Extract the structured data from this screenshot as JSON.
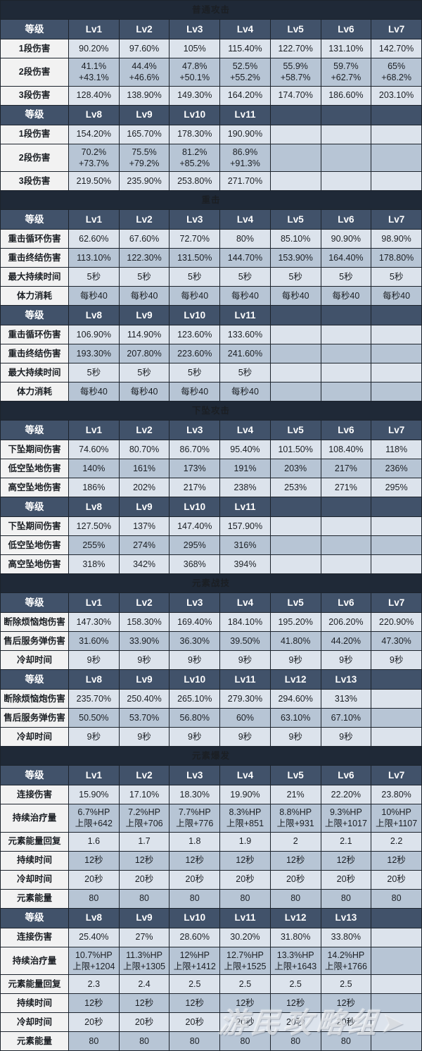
{
  "labels": {
    "level_header": "等级"
  },
  "watermark": {
    "text": "游民攻略组",
    "arrow": "➤"
  },
  "colors": {
    "section_title_bg": "#1f2937",
    "level_header_bg": "#41526a",
    "label_cell_bg": "#f2f2f2",
    "row_light_bg": "#dce3ec",
    "row_dark_bg": "#b7c5d5",
    "border": "#1c232c",
    "header_text": "#ffffff",
    "body_text": "#1b1f24"
  },
  "chart_data": {
    "type": "table",
    "title": "角色天赋数值表（普通攻击 / 重击 / 下坠攻击 / 元素战技 / 元素爆发）"
  },
  "sections": [
    {
      "title": "普通攻击",
      "blocks": [
        {
          "levels": [
            "Lv1",
            "Lv2",
            "Lv3",
            "Lv4",
            "Lv5",
            "Lv6",
            "Lv7"
          ],
          "rows": [
            {
              "label": "1段伤害",
              "values": [
                "90.20%",
                "97.60%",
                "105%",
                "115.40%",
                "122.70%",
                "131.10%",
                "142.70%"
              ]
            },
            {
              "label": "2段伤害",
              "values": [
                "41.1%\n+43.1%",
                "44.4%\n+46.6%",
                "47.8%\n+50.1%",
                "52.5%\n+55.2%",
                "55.9%\n+58.7%",
                "59.7%\n+62.7%",
                "65%\n+68.2%"
              ]
            },
            {
              "label": "3段伤害",
              "values": [
                "128.40%",
                "138.90%",
                "149.30%",
                "164.20%",
                "174.70%",
                "186.60%",
                "203.10%"
              ]
            }
          ]
        },
        {
          "levels": [
            "Lv8",
            "Lv9",
            "Lv10",
            "Lv11",
            "",
            "",
            ""
          ],
          "rows": [
            {
              "label": "1段伤害",
              "values": [
                "154.20%",
                "165.70%",
                "178.30%",
                "190.90%",
                "",
                "",
                ""
              ]
            },
            {
              "label": "2段伤害",
              "values": [
                "70.2%\n+73.7%",
                "75.5%\n+79.2%",
                "81.2%\n+85.2%",
                "86.9%\n+91.3%",
                "",
                "",
                ""
              ]
            },
            {
              "label": "3段伤害",
              "values": [
                "219.50%",
                "235.90%",
                "253.80%",
                "271.70%",
                "",
                "",
                ""
              ]
            }
          ]
        }
      ]
    },
    {
      "title": "重击",
      "blocks": [
        {
          "levels": [
            "Lv1",
            "Lv2",
            "Lv3",
            "Lv4",
            "Lv5",
            "Lv6",
            "Lv7"
          ],
          "rows": [
            {
              "label": "重击循环伤害",
              "values": [
                "62.60%",
                "67.60%",
                "72.70%",
                "80%",
                "85.10%",
                "90.90%",
                "98.90%"
              ]
            },
            {
              "label": "重击终结伤害",
              "values": [
                "113.10%",
                "122.30%",
                "131.50%",
                "144.70%",
                "153.90%",
                "164.40%",
                "178.80%"
              ]
            },
            {
              "label": "最大持续时间",
              "values": [
                "5秒",
                "5秒",
                "5秒",
                "5秒",
                "5秒",
                "5秒",
                "5秒"
              ]
            },
            {
              "label": "体力消耗",
              "values": [
                "每秒40",
                "每秒40",
                "每秒40",
                "每秒40",
                "每秒40",
                "每秒40",
                "每秒40"
              ]
            }
          ]
        },
        {
          "levels": [
            "Lv8",
            "Lv9",
            "Lv10",
            "Lv11",
            "",
            "",
            ""
          ],
          "rows": [
            {
              "label": "重击循环伤害",
              "values": [
                "106.90%",
                "114.90%",
                "123.60%",
                "133.60%",
                "",
                "",
                ""
              ]
            },
            {
              "label": "重击终结伤害",
              "values": [
                "193.30%",
                "207.80%",
                "223.60%",
                "241.60%",
                "",
                "",
                ""
              ]
            },
            {
              "label": "最大持续时间",
              "values": [
                "5秒",
                "5秒",
                "5秒",
                "5秒",
                "",
                "",
                ""
              ]
            },
            {
              "label": "体力消耗",
              "values": [
                "每秒40",
                "每秒40",
                "每秒40",
                "每秒40",
                "",
                "",
                ""
              ]
            }
          ]
        }
      ]
    },
    {
      "title": "下坠攻击",
      "blocks": [
        {
          "levels": [
            "Lv1",
            "Lv2",
            "Lv3",
            "Lv4",
            "Lv5",
            "Lv6",
            "Lv7"
          ],
          "rows": [
            {
              "label": "下坠期间伤害",
              "values": [
                "74.60%",
                "80.70%",
                "86.70%",
                "95.40%",
                "101.50%",
                "108.40%",
                "118%"
              ]
            },
            {
              "label": "低空坠地伤害",
              "values": [
                "140%",
                "161%",
                "173%",
                "191%",
                "203%",
                "217%",
                "236%"
              ]
            },
            {
              "label": "高空坠地伤害",
              "values": [
                "186%",
                "202%",
                "217%",
                "238%",
                "253%",
                "271%",
                "295%"
              ]
            }
          ]
        },
        {
          "levels": [
            "Lv8",
            "Lv9",
            "Lv10",
            "Lv11",
            "",
            "",
            ""
          ],
          "rows": [
            {
              "label": "下坠期间伤害",
              "values": [
                "127.50%",
                "137%",
                "147.40%",
                "157.90%",
                "",
                "",
                ""
              ]
            },
            {
              "label": "低空坠地伤害",
              "values": [
                "255%",
                "274%",
                "295%",
                "316%",
                "",
                "",
                ""
              ]
            },
            {
              "label": "高空坠地伤害",
              "values": [
                "318%",
                "342%",
                "368%",
                "394%",
                "",
                "",
                ""
              ]
            }
          ]
        }
      ]
    },
    {
      "title": "元素战技",
      "blocks": [
        {
          "levels": [
            "Lv1",
            "Lv2",
            "Lv3",
            "Lv4",
            "Lv5",
            "Lv6",
            "Lv7"
          ],
          "rows": [
            {
              "label": "断除烦恼炮伤害",
              "values": [
                "147.30%",
                "158.30%",
                "169.40%",
                "184.10%",
                "195.20%",
                "206.20%",
                "220.90%"
              ]
            },
            {
              "label": "售后服务弹伤害",
              "values": [
                "31.60%",
                "33.90%",
                "36.30%",
                "39.50%",
                "41.80%",
                "44.20%",
                "47.30%"
              ]
            },
            {
              "label": "冷却时间",
              "values": [
                "9秒",
                "9秒",
                "9秒",
                "9秒",
                "9秒",
                "9秒",
                "9秒"
              ]
            }
          ]
        },
        {
          "levels": [
            "Lv8",
            "Lv9",
            "Lv10",
            "Lv11",
            "Lv12",
            "Lv13",
            ""
          ],
          "rows": [
            {
              "label": "断除烦恼炮伤害",
              "values": [
                "235.70%",
                "250.40%",
                "265.10%",
                "279.30%",
                "294.60%",
                "313%",
                ""
              ]
            },
            {
              "label": "售后服务弹伤害",
              "values": [
                "50.50%",
                "53.70%",
                "56.80%",
                "60%",
                "63.10%",
                "67.10%",
                ""
              ]
            },
            {
              "label": "冷却时间",
              "values": [
                "9秒",
                "9秒",
                "9秒",
                "9秒",
                "9秒",
                "9秒",
                ""
              ]
            }
          ]
        }
      ]
    },
    {
      "title": "元素爆发",
      "blocks": [
        {
          "levels": [
            "Lv1",
            "Lv2",
            "Lv3",
            "Lv4",
            "Lv5",
            "Lv6",
            "Lv7"
          ],
          "rows": [
            {
              "label": "连接伤害",
              "values": [
                "15.90%",
                "17.10%",
                "18.30%",
                "19.90%",
                "21%",
                "22.20%",
                "23.80%"
              ]
            },
            {
              "label": "持续治疗量",
              "values": [
                "6.7%HP\n上限+642",
                "7.2%HP\n上限+706",
                "7.7%HP\n上限+776",
                "8.3%HP\n上限+851",
                "8.8%HP\n上限+931",
                "9.3%HP\n上限+1017",
                "10%HP\n上限+1107"
              ]
            },
            {
              "label": "元素能量回复",
              "values": [
                "1.6",
                "1.7",
                "1.8",
                "1.9",
                "2",
                "2.1",
                "2.2"
              ]
            },
            {
              "label": "持续时间",
              "values": [
                "12秒",
                "12秒",
                "12秒",
                "12秒",
                "12秒",
                "12秒",
                "12秒"
              ]
            },
            {
              "label": "冷却时间",
              "values": [
                "20秒",
                "20秒",
                "20秒",
                "20秒",
                "20秒",
                "20秒",
                "20秒"
              ]
            },
            {
              "label": "元素能量",
              "values": [
                "80",
                "80",
                "80",
                "80",
                "80",
                "80",
                "80"
              ]
            }
          ]
        },
        {
          "levels": [
            "Lv8",
            "Lv9",
            "Lv10",
            "Lv11",
            "Lv12",
            "Lv13",
            ""
          ],
          "rows": [
            {
              "label": "连接伤害",
              "values": [
                "25.40%",
                "27%",
                "28.60%",
                "30.20%",
                "31.80%",
                "33.80%",
                ""
              ]
            },
            {
              "label": "持续治疗量",
              "values": [
                "10.7%HP\n上限+1204",
                "11.3%HP\n上限+1305",
                "12%HP\n上限+1412",
                "12.7%HP\n上限+1525",
                "13.3%HP\n上限+1643",
                "14.2%HP\n上限+1766",
                ""
              ]
            },
            {
              "label": "元素能量回复",
              "values": [
                "2.3",
                "2.4",
                "2.5",
                "2.5",
                "2.5",
                "2.5",
                ""
              ]
            },
            {
              "label": "持续时间",
              "values": [
                "12秒",
                "12秒",
                "12秒",
                "12秒",
                "12秒",
                "12秒",
                ""
              ]
            },
            {
              "label": "冷却时间",
              "values": [
                "20秒",
                "20秒",
                "20秒",
                "20秒",
                "20秒",
                "20秒",
                ""
              ]
            },
            {
              "label": "元素能量",
              "values": [
                "80",
                "80",
                "80",
                "80",
                "80",
                "80",
                ""
              ]
            }
          ]
        }
      ]
    }
  ]
}
